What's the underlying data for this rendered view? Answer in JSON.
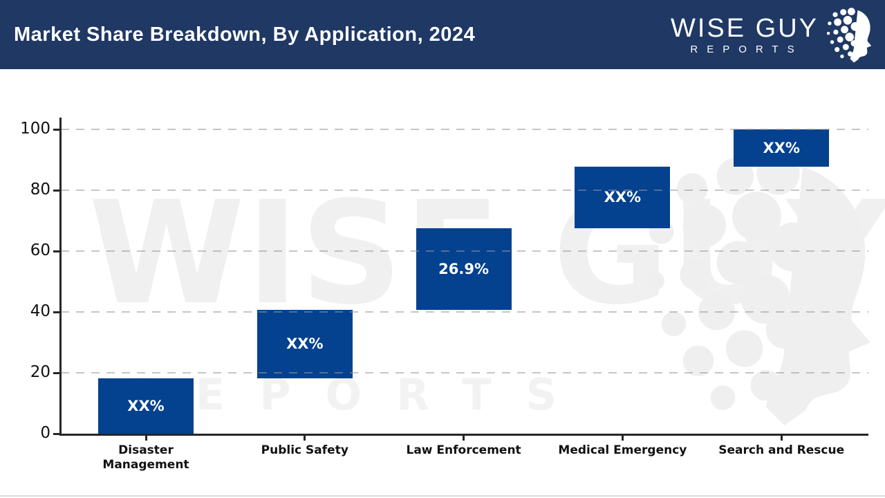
{
  "header": {
    "title": "Market Share Breakdown, By Application, 2024",
    "bg_color": "#1f3864",
    "logo": {
      "line1": "WISE GUY",
      "line2": "REPORTS"
    }
  },
  "watermark": {
    "line1": "WISE GUY",
    "line2": "REPORTS"
  },
  "chart_data": {
    "type": "bar",
    "variant": "stacked-waterfall",
    "title": "Market Share Breakdown, By Application, 2024",
    "categories": [
      "Disaster Management",
      "Public Safety",
      "Law Enforcement",
      "Medical Emergency",
      "Search and Rescue"
    ],
    "tick_labels": [
      "Disaster\nManagement",
      "Public Safety",
      "Law Enforcement",
      "Medical Emergency",
      "Search and Rescue"
    ],
    "segments": [
      {
        "category": "Disaster Management",
        "start": 0,
        "end": 18.2,
        "label": "XX%"
      },
      {
        "category": "Public Safety",
        "start": 18.2,
        "end": 40.7,
        "label": "XX%"
      },
      {
        "category": "Law Enforcement",
        "start": 40.7,
        "end": 67.6,
        "label": "26.9%"
      },
      {
        "category": "Medical Emergency",
        "start": 67.6,
        "end": 87.7,
        "label": "XX%"
      },
      {
        "category": "Search and Rescue",
        "start": 87.7,
        "end": 100,
        "label": "XX%"
      }
    ],
    "values_masked_as": "XX%",
    "known_value": {
      "category": "Law Enforcement",
      "value_pct": 26.9
    },
    "y_ticks": [
      0,
      20,
      40,
      60,
      80,
      100
    ],
    "ylim": [
      0,
      105
    ],
    "xlabel": "",
    "ylabel": "",
    "bar_color": "#04418f",
    "grid": "horizontal dashed",
    "legend": "none"
  }
}
